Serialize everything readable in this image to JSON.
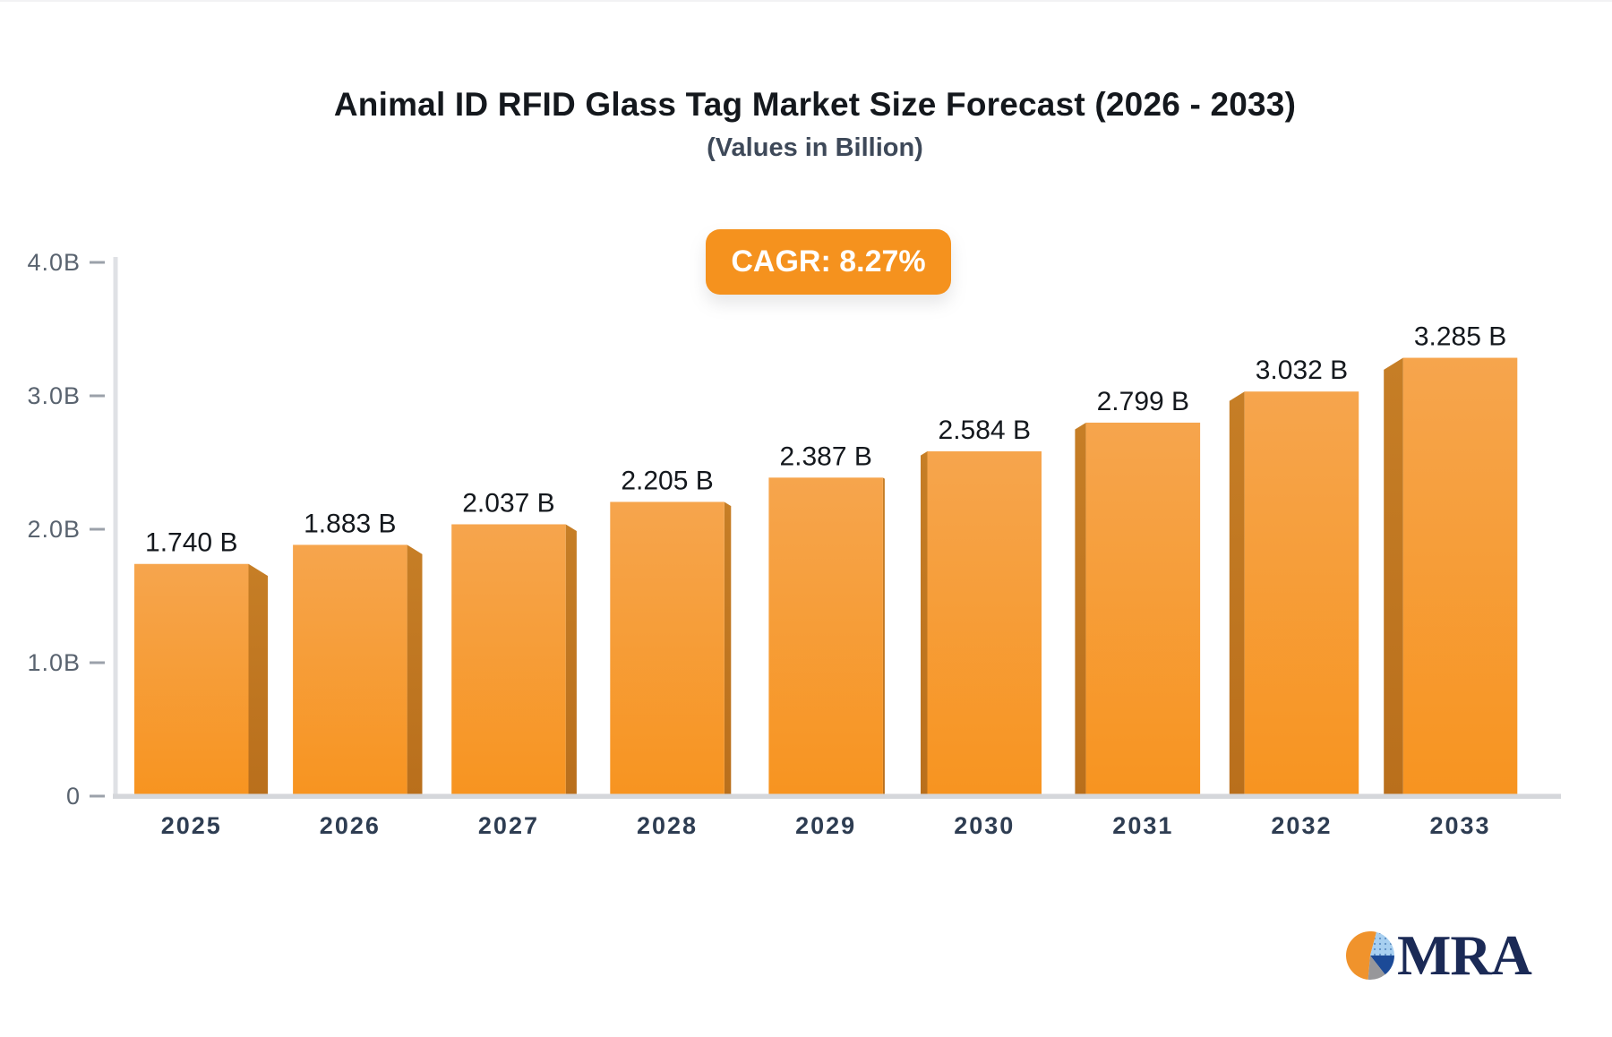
{
  "chart_data": {
    "type": "bar",
    "title": "Animal ID RFID Glass Tag Market Size Forecast (2026 - 2033)",
    "subtitle": "(Values in Billion)",
    "categories": [
      "2025",
      "2026",
      "2027",
      "2028",
      "2029",
      "2030",
      "2031",
      "2032",
      "2033"
    ],
    "values": [
      1.74,
      1.883,
      2.037,
      2.205,
      2.387,
      2.584,
      2.799,
      3.032,
      3.285
    ],
    "value_labels": [
      "1.740 B",
      "1.883 B",
      "2.037 B",
      "2.205 B",
      "2.387 B",
      "2.584 B",
      "2.799 B",
      "3.032 B",
      "3.285 B"
    ],
    "yticks": [
      {
        "value": 0,
        "label": "0"
      },
      {
        "value": 1,
        "label": "1.0B"
      },
      {
        "value": 2,
        "label": "2.0B"
      },
      {
        "value": 3,
        "label": "3.0B"
      },
      {
        "value": 4,
        "label": "4.0B"
      }
    ],
    "ylim": [
      0,
      4
    ],
    "xlabel": "",
    "ylabel": "",
    "grid": false,
    "legend": null,
    "bar_style": "3d-perspective-center-vanishing",
    "colors": {
      "bar_face_top": "#F6A54D",
      "bar_face_bottom": "#F79420",
      "bar_side_top": "#C67E26",
      "bar_side_bottom": "#B96F1C",
      "axis_line": "#DFE1E5",
      "baseline": "#D5D7DB",
      "tick_dash": "#9BA1AA",
      "y_tick_label": "#59636F",
      "x_tick_label": "#2E3D52",
      "value_label": "#14181D"
    }
  },
  "badge": {
    "label": "CAGR: 8.27%",
    "bg": "#F5921E",
    "text_color": "#FFFFFF"
  },
  "logo": {
    "text": "MRA",
    "text_color": "#1B2A56",
    "pie": {
      "orange": "#F0932C",
      "light_blue": "#A7CFF0",
      "dot_blue": "#5C8FC4",
      "navy": "#1B4A97",
      "gray": "#97979A"
    }
  }
}
